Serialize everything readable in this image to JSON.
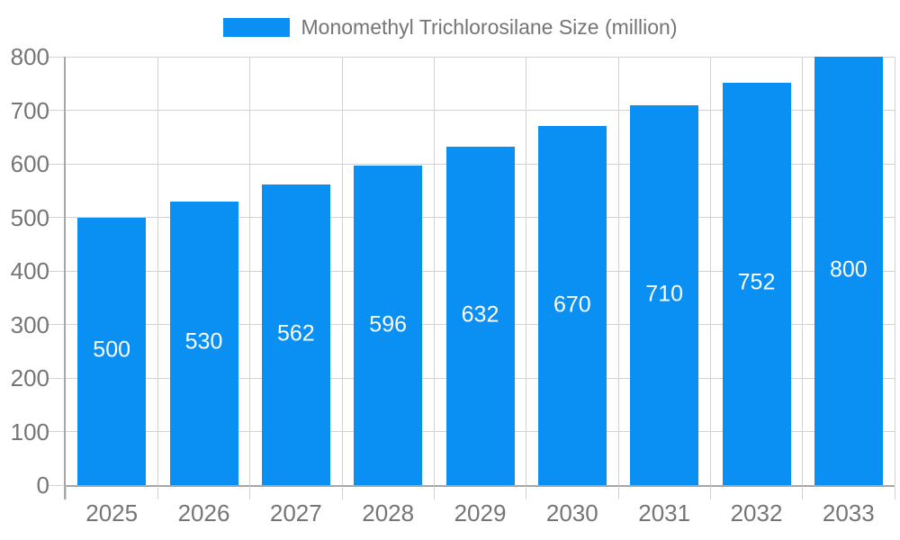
{
  "legend": {
    "label": "Monomethyl Trichlorosilane Size (million)"
  },
  "chart_data": {
    "type": "bar",
    "title": "Monomethyl Trichlorosilane Size (million)",
    "categories": [
      "2025",
      "2026",
      "2027",
      "2028",
      "2029",
      "2030",
      "2031",
      "2032",
      "2033"
    ],
    "values": [
      500,
      530,
      562,
      596,
      632,
      670,
      710,
      752,
      800
    ],
    "series": [
      {
        "name": "Monomethyl Trichlorosilane Size (million)",
        "values": [
          500,
          530,
          562,
          596,
          632,
          670,
          710,
          752,
          800
        ]
      }
    ],
    "xlabel": "",
    "ylabel": "",
    "ylim": [
      0,
      800
    ],
    "ytick_step": 100,
    "ytick_labels": [
      "0",
      "100",
      "200",
      "300",
      "400",
      "500",
      "600",
      "700",
      "800"
    ],
    "grid": true,
    "legend_position": "top-center",
    "data_labels": "inside-center"
  },
  "colors": {
    "bar": "#0a8ff2",
    "grid": "#d2d2d2",
    "axis": "#a6a6a6",
    "tick_text": "#757575",
    "data_label_text": "#ffffff",
    "background": "#ffffff"
  }
}
